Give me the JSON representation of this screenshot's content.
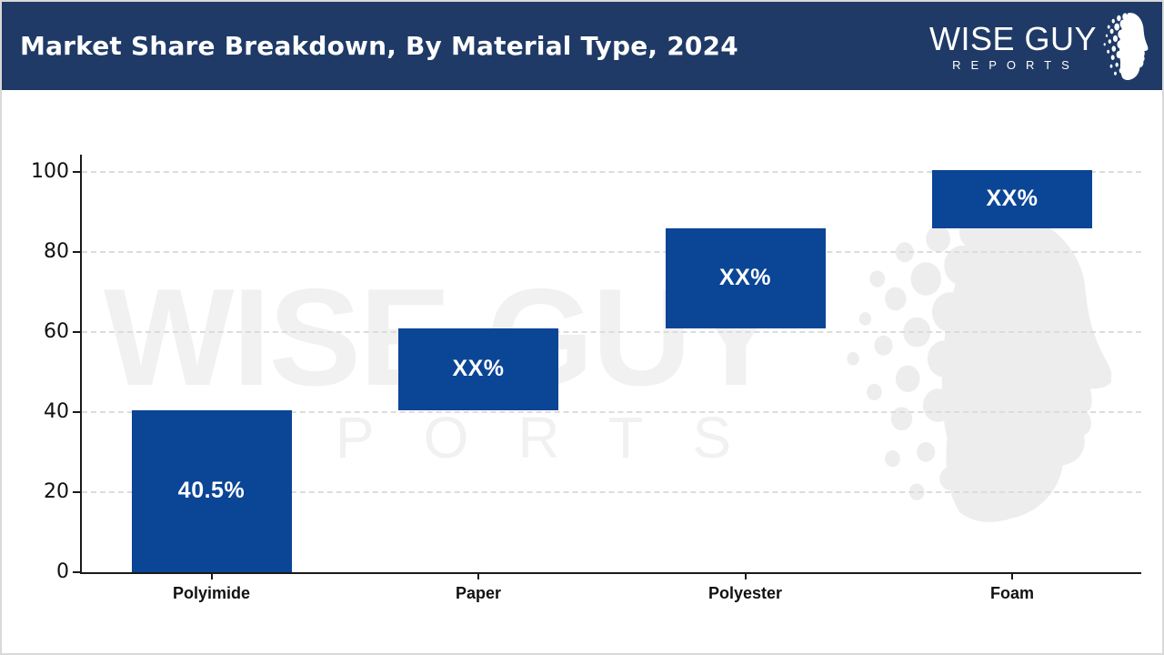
{
  "header": {
    "title": "Market Share Breakdown, By Material Type, 2024",
    "logo": {
      "name": "WISE GUY",
      "subname": "REPORTS"
    }
  },
  "watermark": {
    "line1": "WISE GUY",
    "line2": "REPORTS"
  },
  "colors": {
    "header_bg": "#1f3a66",
    "bar": "#0b4596",
    "grid": "#dcdcdc",
    "axis": "#1a1a1a",
    "watermark_text": "#f1f1f1"
  },
  "chart_data": {
    "type": "bar",
    "subtype": "waterfall",
    "title": "Market Share Breakdown, By Material Type, 2024",
    "categories": [
      "Polyimide",
      "Paper",
      "Polyester",
      "Foam"
    ],
    "bars": [
      {
        "category": "Polyimide",
        "start": 0,
        "end": 40.5,
        "label": "40.5%"
      },
      {
        "category": "Paper",
        "start": 40.5,
        "end": 61,
        "label": "XX%"
      },
      {
        "category": "Polyester",
        "start": 61,
        "end": 86,
        "label": "XX%"
      },
      {
        "category": "Foam",
        "start": 86,
        "end": 100.5,
        "label": "XX%"
      }
    ],
    "y_ticks": [
      0,
      20,
      40,
      60,
      80,
      100
    ],
    "ylim": [
      0,
      104
    ],
    "xlabel": "",
    "ylabel": "",
    "grid": "horizontal-dashed",
    "legend": "none"
  }
}
